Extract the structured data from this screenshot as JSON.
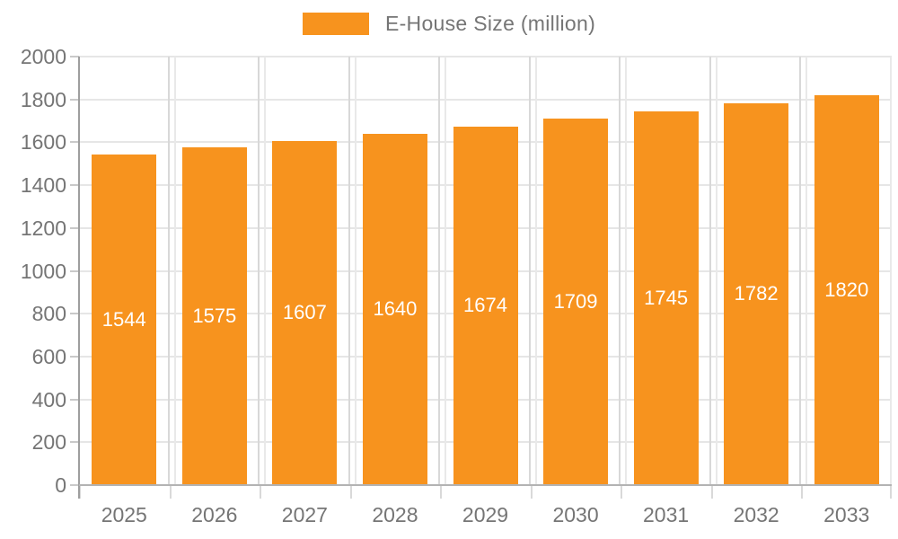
{
  "page": {
    "background": "#FFFFFF"
  },
  "chart_data": {
    "type": "bar",
    "title": "",
    "legend": "E-House Size (million)",
    "legend_position": "top",
    "categories": [
      "2025",
      "2026",
      "2027",
      "2028",
      "2029",
      "2030",
      "2031",
      "2032",
      "2033"
    ],
    "values": [
      1544,
      1575,
      1607,
      1640,
      1674,
      1709,
      1745,
      1782,
      1820
    ],
    "value_labels": [
      "1544",
      "1575",
      "1607",
      "1640",
      "1674",
      "1709",
      "1745",
      "1782",
      "1820"
    ],
    "xlabel": "",
    "ylabel": "",
    "ylim": [
      0,
      2000
    ],
    "ytick_step": 200,
    "yticks": [
      0,
      200,
      400,
      600,
      800,
      1000,
      1200,
      1400,
      1600,
      1800,
      2000
    ],
    "grid": true,
    "colors": {
      "bar": "#F7931E",
      "value_text": "#FFFFFF",
      "axis_text": "#757575",
      "hgrid": "#E6E6E6",
      "vgrid_dark": "#D8D8D8",
      "vgrid_light": "#E9E9E9",
      "y_axis_line": "#9E9E9E",
      "x_axis_line": "#B3B3B3",
      "y_tick": "#C9C9C9",
      "x_tick": "#D9D9D9"
    }
  }
}
